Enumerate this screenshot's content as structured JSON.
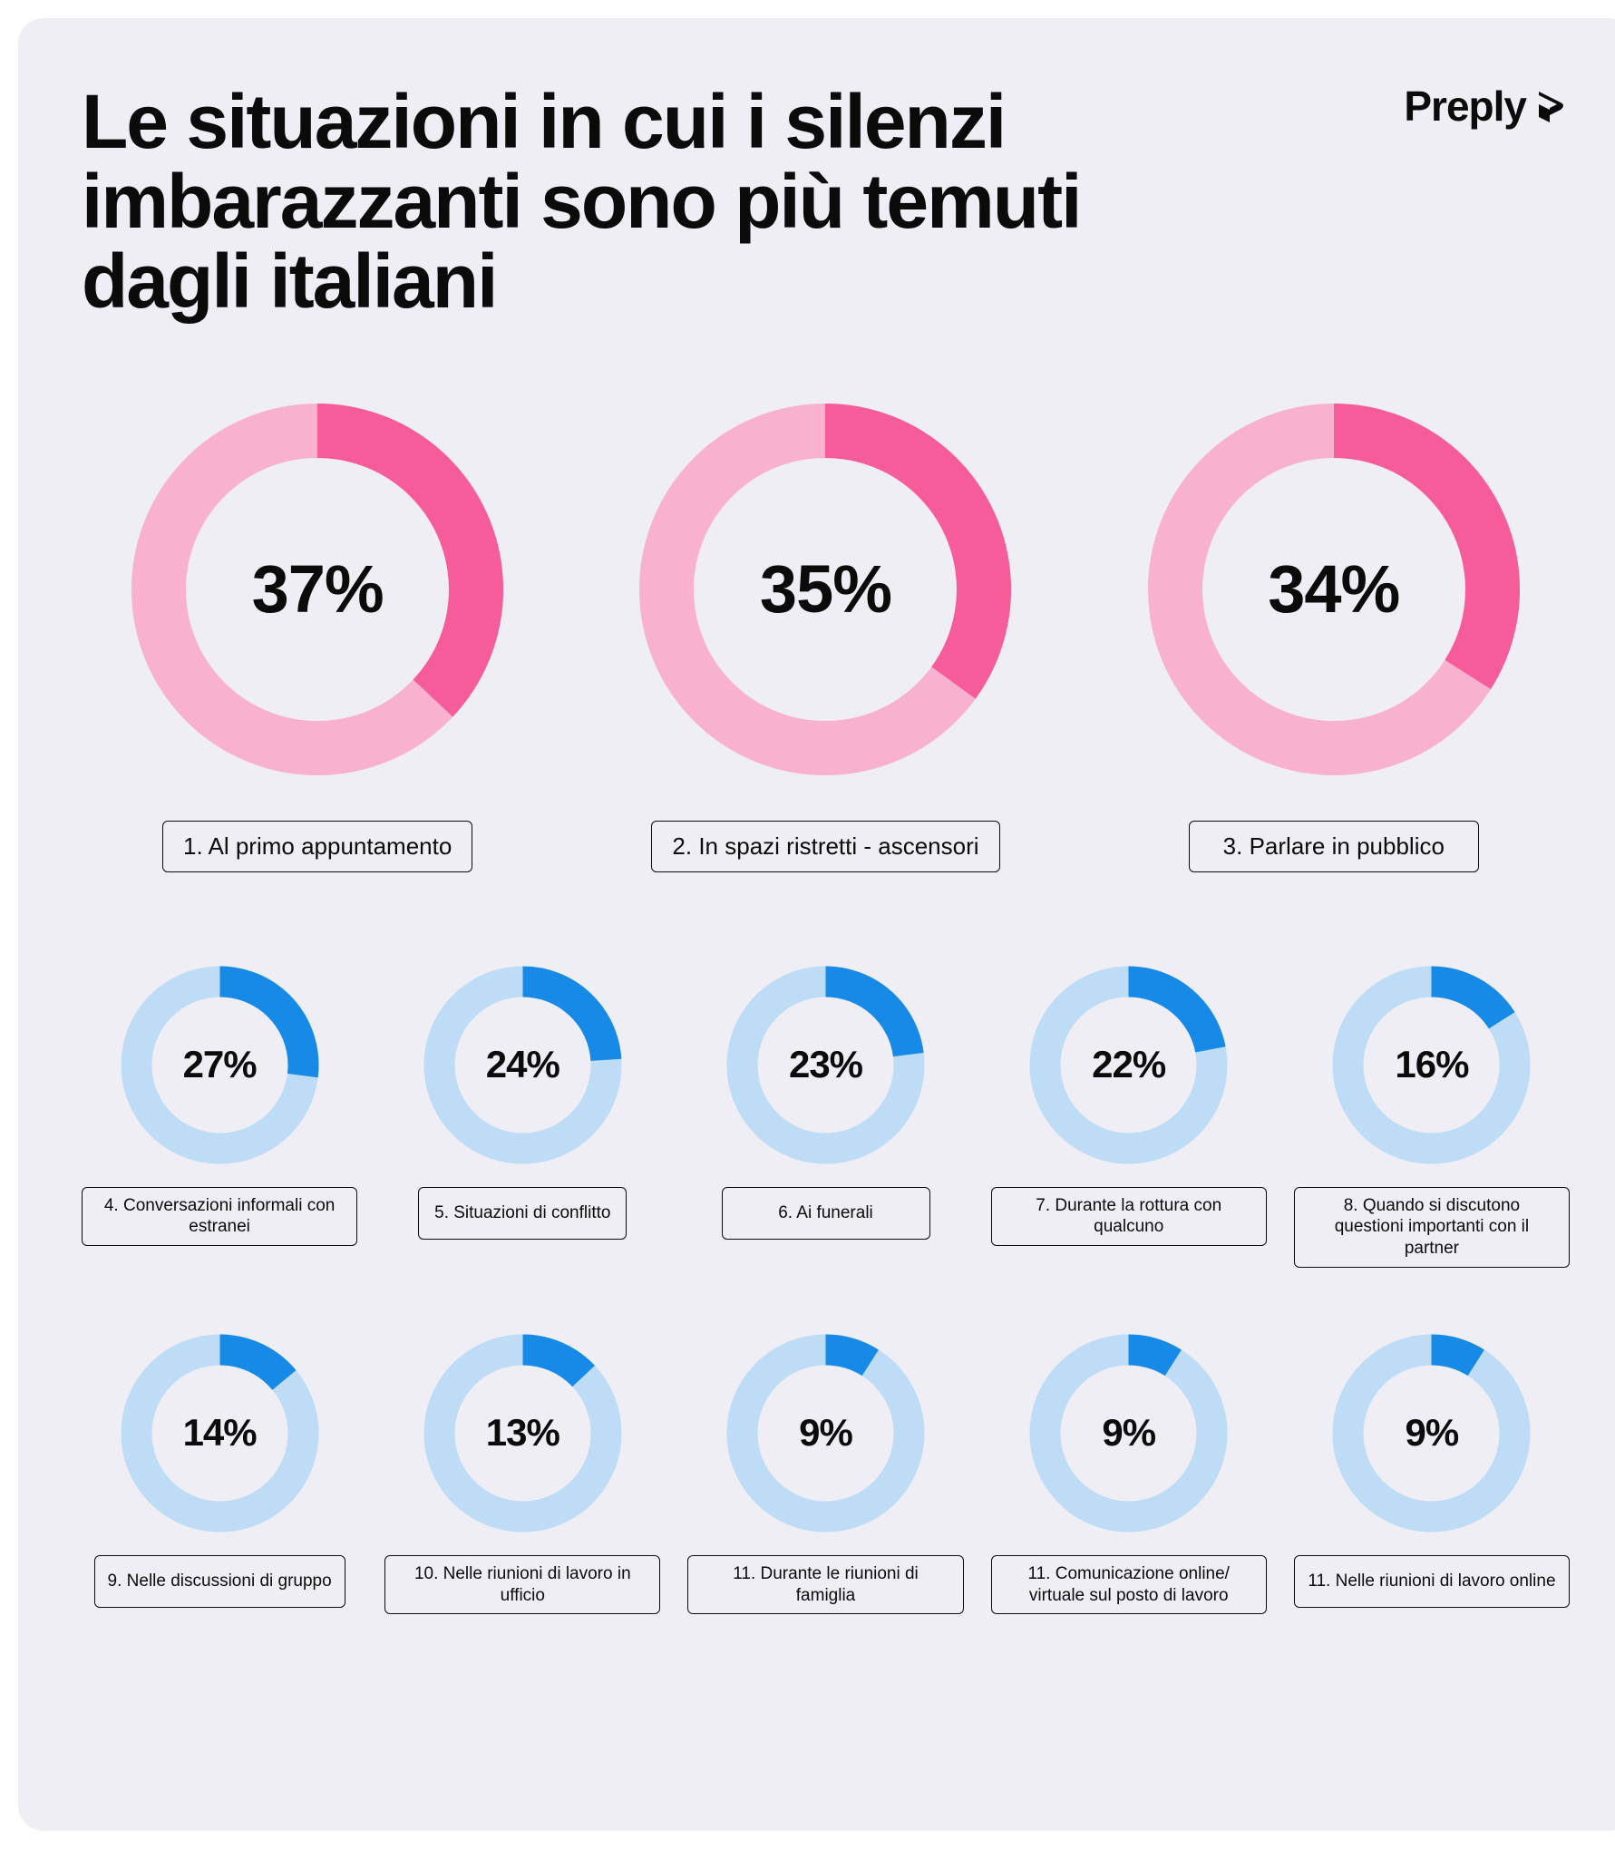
{
  "background_color": "#efeef4",
  "text_color": "#0b0b0b",
  "title": "Le situazioni in cui i silenzi imbarazzanti sono più temuti dagli italiani",
  "brand": "Preply",
  "large_ring": {
    "track_color": "#f8b2cf",
    "fill_color": "#f65c9a",
    "stroke_width": 60,
    "radius": 175
  },
  "small_ring": {
    "track_color": "#bedcf6",
    "fill_color": "#1789e6",
    "stroke_width": 34,
    "radius": 92
  },
  "top3": [
    {
      "pct": 37,
      "label": "1.  Al primo appuntamento"
    },
    {
      "pct": 35,
      "label": "2.  In spazi ristretti - ascensori"
    },
    {
      "pct": 34,
      "label": "3.  Parlare in pubblico"
    }
  ],
  "rowA": [
    {
      "pct": 27,
      "label": "4. Conversazioni informali con estranei"
    },
    {
      "pct": 24,
      "label": "5. Situazioni di conflitto"
    },
    {
      "pct": 23,
      "label": "6. Ai funerali"
    },
    {
      "pct": 22,
      "label": "7. Durante la rottura con qualcuno"
    },
    {
      "pct": 16,
      "label": "8. Quando si discutono questioni importanti con il partner"
    }
  ],
  "rowB": [
    {
      "pct": 14,
      "label": "9. Nelle discussioni di gruppo"
    },
    {
      "pct": 13,
      "label": "10. Nelle riunioni di lavoro in ufficio"
    },
    {
      "pct": 9,
      "label": "11. Durante le riunioni di famiglia"
    },
    {
      "pct": 9,
      "label": "11. Comunicazione online/ virtuale sul posto di lavoro"
    },
    {
      "pct": 9,
      "label": "11. Nelle riunioni di lavoro online"
    }
  ]
}
